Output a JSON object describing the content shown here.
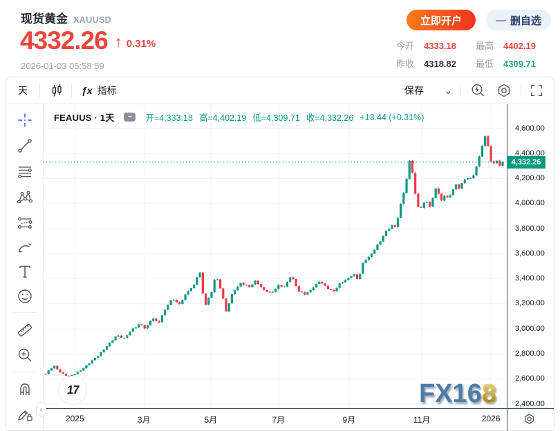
{
  "header": {
    "title": "现货黄金",
    "symbol": "XAUUSD",
    "price": "4332.26",
    "arrow_glyph": "↑",
    "change_percent": "0.31%",
    "timestamp": "2026-01-03 05:58:59",
    "open_account_label": "立即开户",
    "remove_minus_glyph": "—",
    "remove_watchlist_label": "删自选",
    "stats": [
      {
        "label": "今开",
        "value": "4333.18",
        "color": "#e9463c"
      },
      {
        "label": "昨收",
        "value": "4318.82",
        "color": "#333740"
      },
      {
        "label": "最高",
        "value": "4402.19",
        "color": "#e9463c"
      },
      {
        "label": "最低",
        "value": "4309.71",
        "color": "#1fa584"
      }
    ]
  },
  "toolbar": {
    "interval_label": "天",
    "fx_glyph": "ƒx",
    "indicators_label": "指标",
    "save_label": "保存",
    "save_chevron": "⌄",
    "right_icons": [
      "flash-search-icon",
      "settings-hexagon-icon",
      "fullscreen-icon"
    ]
  },
  "sidebar": {
    "tools": [
      "crosshair",
      "trend-line",
      "fib-retracement",
      "xabcd-pattern",
      "long-position",
      "brush",
      "text",
      "emoji",
      "measure",
      "zoom-in",
      "magnet",
      "drawings-lock"
    ]
  },
  "chart": {
    "legend_symbol": "FEAUUS · 1天",
    "legend_minus_glyph": "−",
    "ohlc_parts": [
      "开=4,333.18",
      "高=4,402.19",
      "低=4,309.71",
      "收=4,332.26",
      "+13.44 (+0.31%)"
    ],
    "price_tag": "4,332.26",
    "scroll_left_glyph": "‹"
  },
  "branding": {
    "tradingview_glyph": "17",
    "watermark_fx": "FX16",
    "watermark_eight": "8"
  },
  "chart_data": {
    "type": "candlestick",
    "symbol": "XAUUSD (FEAUUS)",
    "interval": "1天",
    "last": {
      "open": 4333.18,
      "high": 4402.19,
      "low": 4309.71,
      "close": 4332.26,
      "change": 13.44,
      "change_percent": 0.31
    },
    "price_line": 4332.26,
    "ylim": [
      2400,
      4600
    ],
    "grid": true,
    "y_ticks": [
      4600,
      4400,
      4200,
      4000,
      3800,
      3600,
      3400,
      3200,
      3000,
      2800,
      2600,
      2400
    ],
    "x_ticks": [
      {
        "label": "2025",
        "f": 0.069
      },
      {
        "label": "3月",
        "f": 0.218
      },
      {
        "label": "5月",
        "f": 0.362
      },
      {
        "label": "7月",
        "f": 0.508
      },
      {
        "label": "9月",
        "f": 0.66
      },
      {
        "label": "11月",
        "f": 0.817
      },
      {
        "label": "2026",
        "f": 0.966
      }
    ],
    "colors": {
      "up": "#089981",
      "down": "#f23645",
      "grid": "#f2f4f9",
      "price_line": "#089981"
    },
    "path": [
      [
        0.0,
        2640
      ],
      [
        0.018,
        2705
      ],
      [
        0.036,
        2645
      ],
      [
        0.051,
        2615
      ],
      [
        0.07,
        2655
      ],
      [
        0.091,
        2710
      ],
      [
        0.115,
        2790
      ],
      [
        0.139,
        2880
      ],
      [
        0.157,
        2955
      ],
      [
        0.171,
        2920
      ],
      [
        0.191,
        3000
      ],
      [
        0.207,
        3045
      ],
      [
        0.219,
        2995
      ],
      [
        0.233,
        3090
      ],
      [
        0.247,
        3050
      ],
      [
        0.263,
        3165
      ],
      [
        0.278,
        3245
      ],
      [
        0.292,
        3195
      ],
      [
        0.312,
        3300
      ],
      [
        0.327,
        3360
      ],
      [
        0.336,
        3490
      ],
      [
        0.348,
        3175
      ],
      [
        0.362,
        3280
      ],
      [
        0.372,
        3435
      ],
      [
        0.384,
        3310
      ],
      [
        0.395,
        3135
      ],
      [
        0.41,
        3300
      ],
      [
        0.427,
        3365
      ],
      [
        0.445,
        3330
      ],
      [
        0.46,
        3390
      ],
      [
        0.475,
        3310
      ],
      [
        0.493,
        3285
      ],
      [
        0.51,
        3350
      ],
      [
        0.523,
        3330
      ],
      [
        0.537,
        3430
      ],
      [
        0.554,
        3300
      ],
      [
        0.569,
        3270
      ],
      [
        0.584,
        3330
      ],
      [
        0.599,
        3380
      ],
      [
        0.614,
        3330
      ],
      [
        0.629,
        3300
      ],
      [
        0.644,
        3360
      ],
      [
        0.66,
        3395
      ],
      [
        0.673,
        3445
      ],
      [
        0.684,
        3390
      ],
      [
        0.696,
        3540
      ],
      [
        0.708,
        3575
      ],
      [
        0.72,
        3640
      ],
      [
        0.734,
        3705
      ],
      [
        0.747,
        3790
      ],
      [
        0.76,
        3835
      ],
      [
        0.766,
        3810
      ],
      [
        0.775,
        3960
      ],
      [
        0.782,
        4060
      ],
      [
        0.79,
        4200
      ],
      [
        0.796,
        4340
      ],
      [
        0.799,
        4365
      ],
      [
        0.805,
        4180
      ],
      [
        0.811,
        4020
      ],
      [
        0.818,
        3945
      ],
      [
        0.826,
        3990
      ],
      [
        0.834,
        4025
      ],
      [
        0.838,
        3965
      ],
      [
        0.844,
        3995
      ],
      [
        0.85,
        4095
      ],
      [
        0.855,
        4140
      ],
      [
        0.859,
        4080
      ],
      [
        0.865,
        4015
      ],
      [
        0.873,
        4065
      ],
      [
        0.88,
        4045
      ],
      [
        0.888,
        4095
      ],
      [
        0.896,
        4135
      ],
      [
        0.9,
        4165
      ],
      [
        0.905,
        4115
      ],
      [
        0.911,
        4155
      ],
      [
        0.917,
        4195
      ],
      [
        0.921,
        4230
      ],
      [
        0.926,
        4185
      ],
      [
        0.932,
        4215
      ],
      [
        0.938,
        4240
      ],
      [
        0.944,
        4305
      ],
      [
        0.95,
        4385
      ],
      [
        0.956,
        4470
      ],
      [
        0.961,
        4530
      ],
      [
        0.965,
        4545
      ],
      [
        0.97,
        4425
      ],
      [
        0.974,
        4345
      ],
      [
        0.979,
        4300
      ],
      [
        0.985,
        4365
      ],
      [
        0.989,
        4330
      ],
      [
        0.994,
        4290
      ],
      [
        1.0,
        4332.26
      ]
    ],
    "candle_count": 158
  }
}
